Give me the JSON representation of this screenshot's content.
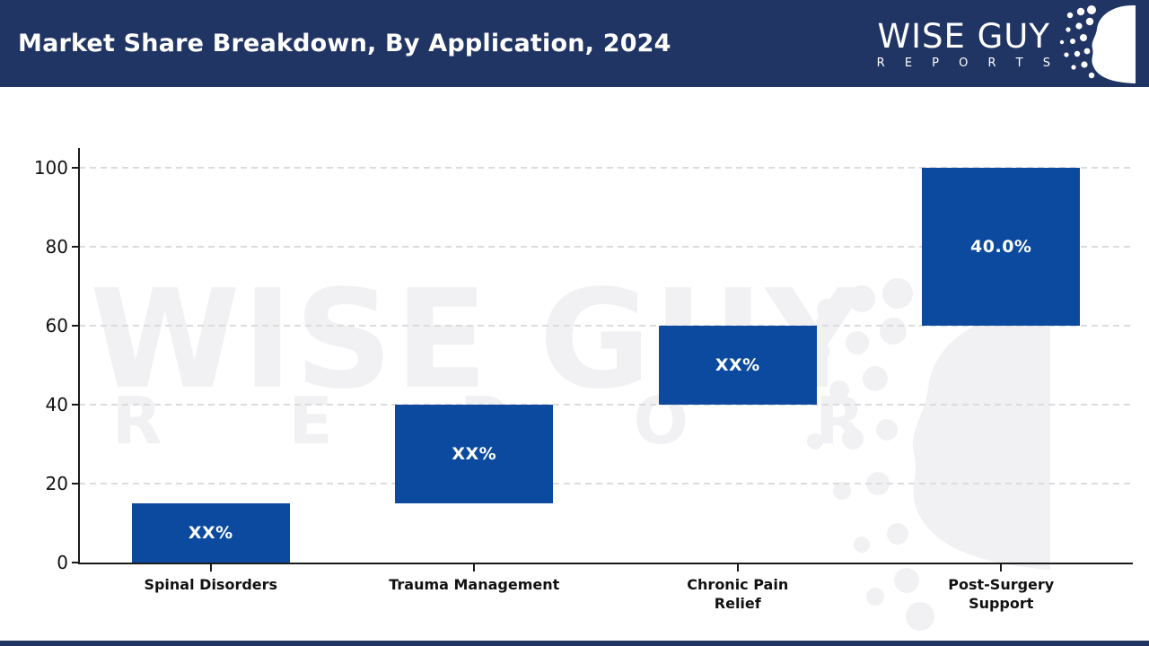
{
  "header": {
    "title": "Market Share Breakdown, By Application, 2024",
    "logo": {
      "line1": "WISE GUY",
      "line2": "R E P O R T S"
    }
  },
  "watermark": {
    "line1": "WISE GUY",
    "line2": "R E P O R T S"
  },
  "colors": {
    "header_navy": "#213564",
    "bar_blue": "#0b4a9e",
    "gridline": "#dcdcdc",
    "watermark_gray": "#f1f1f3"
  },
  "chart_data": {
    "type": "bar",
    "subtype": "waterfall-floating-bars",
    "title": "Market Share Breakdown, By Application, 2024",
    "xlabel": "",
    "ylabel": "",
    "categories": [
      "Spinal Disorders",
      "Trauma Management",
      "Chronic Pain\nRelief",
      "Post-Surgery\nSupport"
    ],
    "segments": [
      {
        "category": "Spinal Disorders",
        "start": 0,
        "end": 15,
        "label": "XX%"
      },
      {
        "category": "Trauma Management",
        "start": 15,
        "end": 40,
        "label": "XX%"
      },
      {
        "category": "Chronic Pain Relief",
        "start": 40,
        "end": 60,
        "label": "XX%"
      },
      {
        "category": "Post-Surgery Support",
        "start": 60,
        "end": 100,
        "label": "40.0%"
      }
    ],
    "y_ticks": [
      0,
      20,
      40,
      60,
      80,
      100
    ],
    "ylim": [
      0,
      105
    ],
    "grid": "horizontal-dashed",
    "legend": "none",
    "bar_color": "#0b4a9e",
    "bar_label_color": "#ffffff"
  }
}
